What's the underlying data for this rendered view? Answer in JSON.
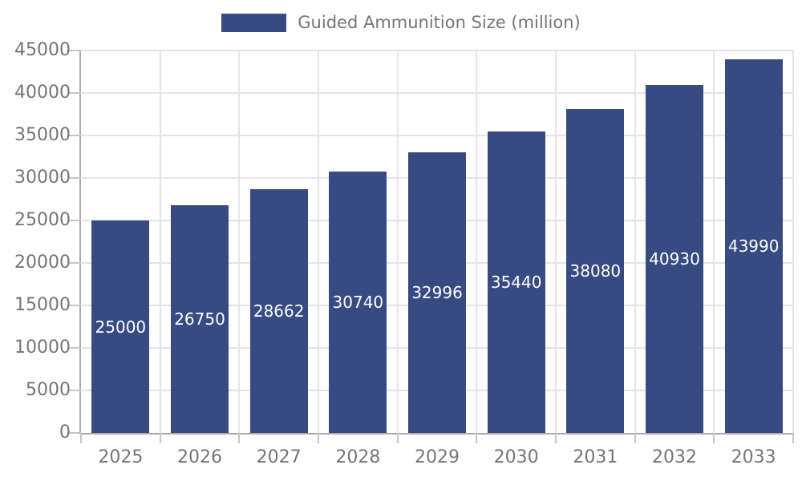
{
  "legend": {
    "label": "Guided Ammunition Size (million)"
  },
  "chart_data": {
    "type": "bar",
    "title": "Guided Ammunition Size (million)",
    "categories": [
      "2025",
      "2026",
      "2027",
      "2028",
      "2029",
      "2030",
      "2031",
      "2032",
      "2033"
    ],
    "series": [
      {
        "name": "Guided Ammunition Size (million)",
        "values": [
          25000,
          26750,
          28662,
          30740,
          32996,
          35440,
          38080,
          40930,
          43990
        ]
      }
    ],
    "bar_labels": [
      "25000",
      "26750",
      "28662",
      "30740",
      "32996",
      "35440",
      "38080",
      "40930",
      "43990"
    ],
    "xlabel": "",
    "ylabel": "",
    "ylim": [
      0,
      45000
    ],
    "yticks": [
      0,
      5000,
      10000,
      15000,
      20000,
      25000,
      30000,
      35000,
      40000,
      45000
    ],
    "grid": true,
    "legend_position": "top",
    "colors": {
      "bar": "#374b82",
      "bar_label": "#ffffff",
      "axis_text": "#757575",
      "grid_line": "#e3e3eb",
      "axis_line": "#aaaaaa",
      "tick": "#c6c6c6"
    }
  }
}
